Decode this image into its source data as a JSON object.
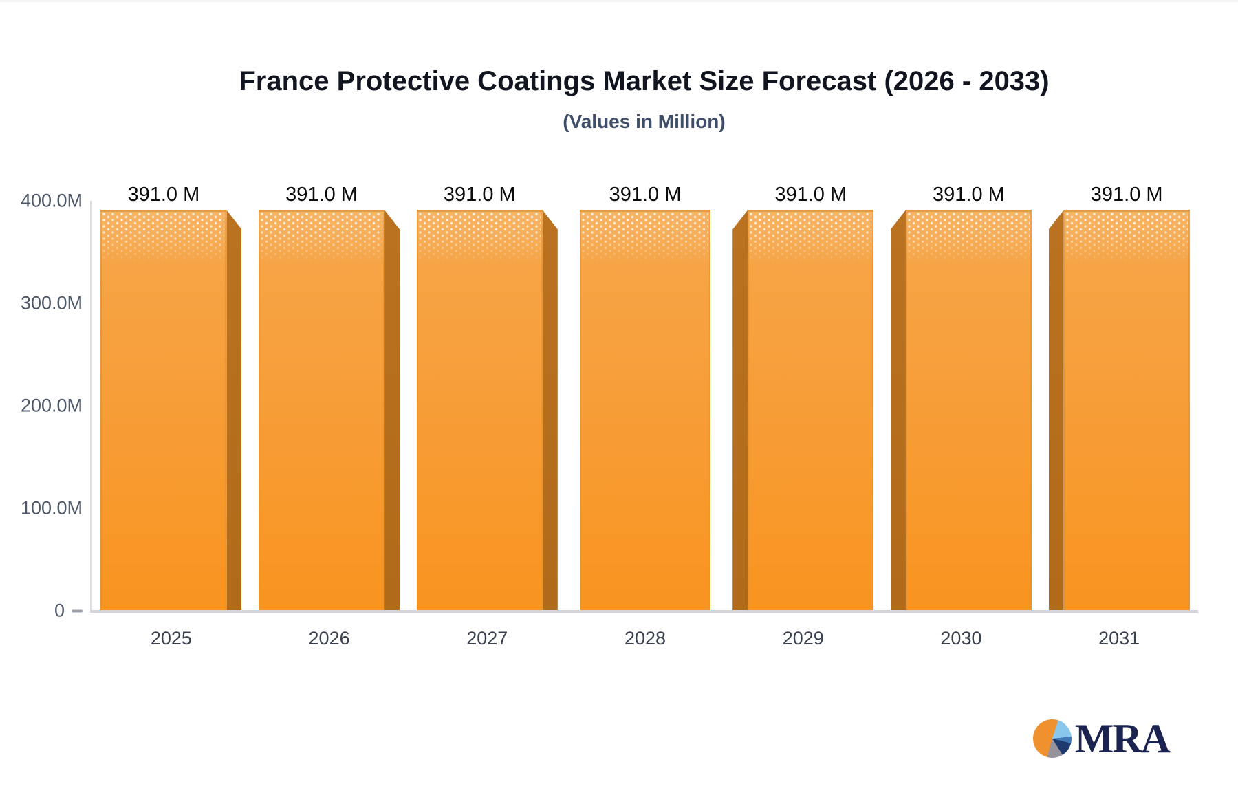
{
  "header": {
    "title": "France Protective Coatings Market Size Forecast (2026 - 2033)",
    "subtitle": "(Values in Million)"
  },
  "chart_data": {
    "type": "bar",
    "title": "France Protective Coatings Market Size Forecast (2026 - 2033)",
    "subtitle": "(Values in Million)",
    "categories": [
      "2025",
      "2026",
      "2027",
      "2028",
      "2029",
      "2030",
      "2031"
    ],
    "values": [
      391.0,
      391.0,
      391.0,
      391.0,
      391.0,
      391.0,
      391.0
    ],
    "bar_labels": [
      "391.0 M",
      "391.0 M",
      "391.0 M",
      "391.0 M",
      "391.0 M",
      "391.0 M",
      "391.0 M"
    ],
    "xlabel": "",
    "ylabel": "",
    "ylim": [
      0,
      400
    ],
    "yticks": [
      {
        "label": "400.0M",
        "value": 400
      },
      {
        "label": "300.0M",
        "value": 300
      },
      {
        "label": "200.0M",
        "value": 200
      },
      {
        "label": "100.0M",
        "value": 100
      },
      {
        "label": "0",
        "value": 0
      }
    ],
    "grid": false,
    "legend": null,
    "colors": {
      "bar_face_top": "#f6a74b",
      "bar_face_bottom": "#f89420",
      "bar_side": "#b46e1c",
      "axis_line": "#d3d5da",
      "value_label": "#0c0c0c",
      "tick_label": "#4d5869",
      "category_label": "#39414f"
    }
  },
  "logo": {
    "text": "MRA"
  }
}
